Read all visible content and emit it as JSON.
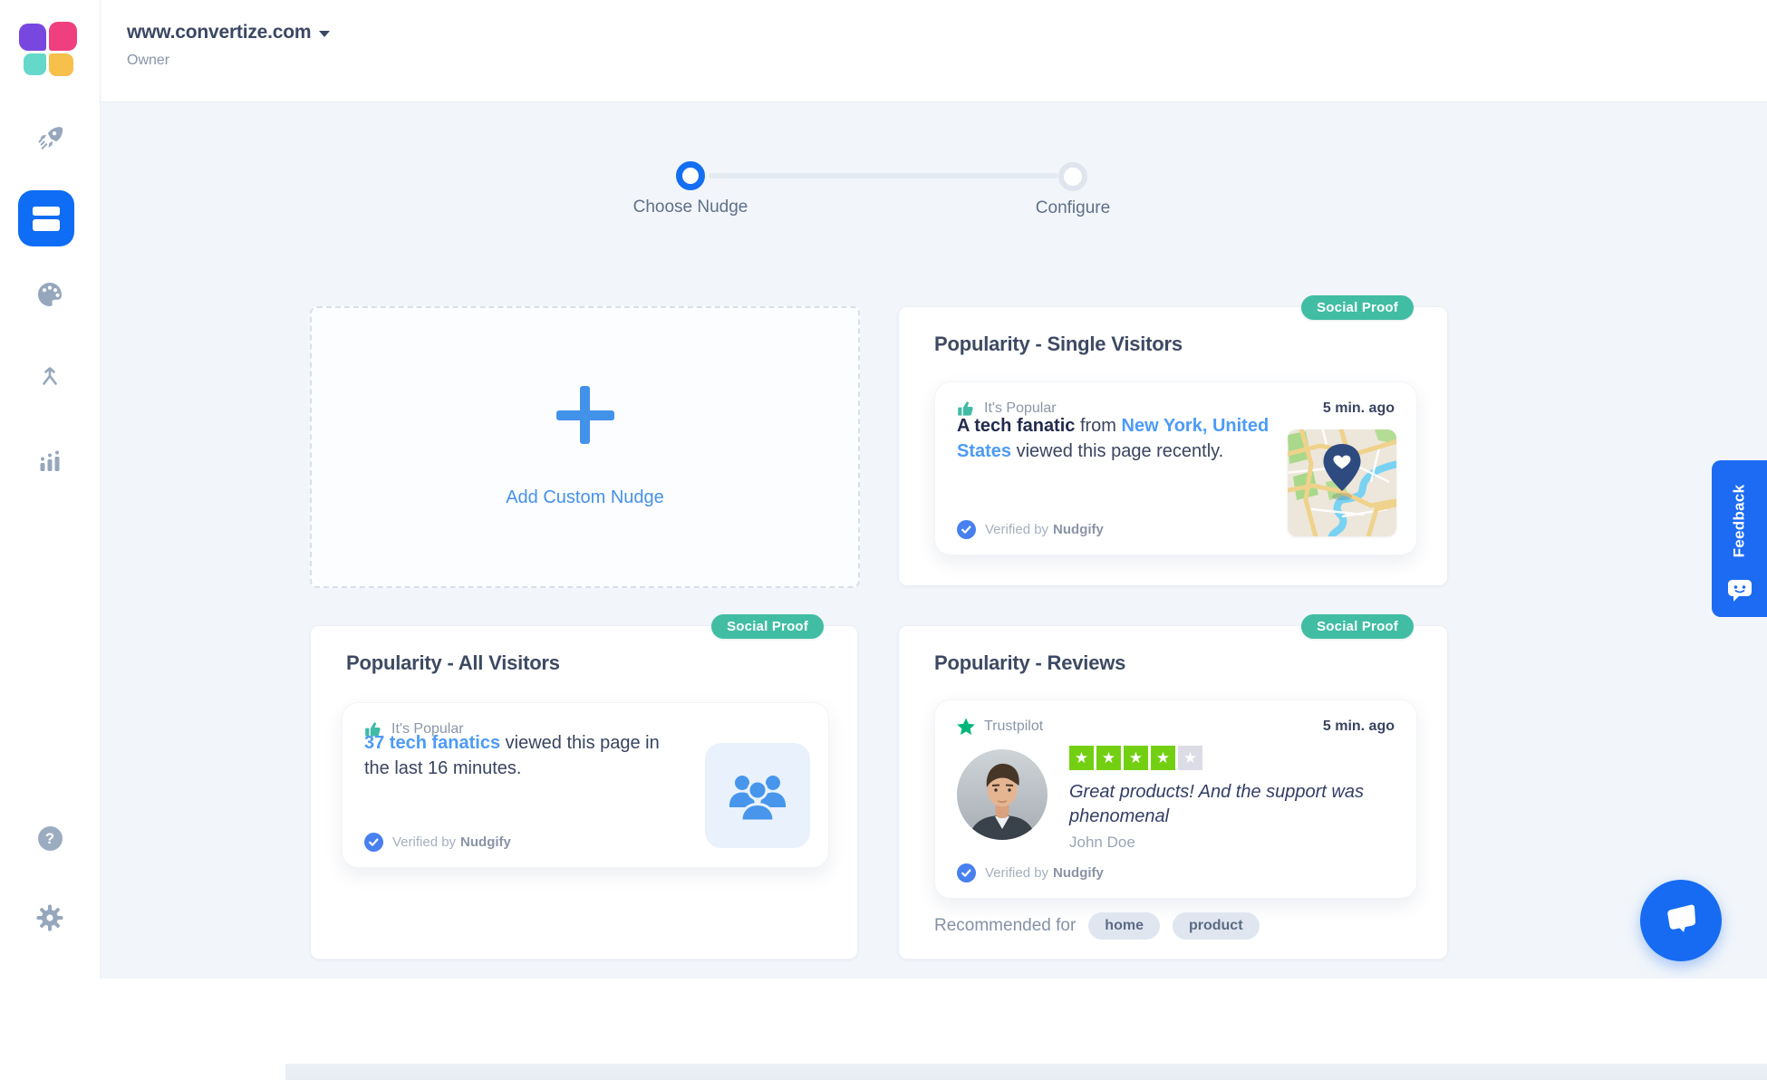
{
  "topbar": {
    "domain": "www.convertize.com",
    "role": "Owner"
  },
  "stepper": {
    "steps": [
      {
        "label": "Choose Nudge",
        "active": true
      },
      {
        "label": "Configure",
        "active": false
      }
    ]
  },
  "add_custom": {
    "label": "Add Custom Nudge"
  },
  "cards": {
    "single_visitors": {
      "badge": "Social Proof",
      "title": "Popularity - Single Visitors",
      "nudge": {
        "tag": "It's Popular",
        "time": "5 min. ago",
        "message_parts": [
          {
            "text": "A tech fanatic",
            "style": "bold"
          },
          {
            "text": " from ",
            "style": "plain"
          },
          {
            "text": "New York, United States",
            "style": "link"
          },
          {
            "text": " viewed this page recently.",
            "style": "plain"
          }
        ],
        "verified_prefix": "Verified by",
        "verified_brand": "Nudgify"
      }
    },
    "all_visitors": {
      "badge": "Social Proof",
      "title": "Popularity - All Visitors",
      "nudge": {
        "tag": "It's Popular",
        "message_parts": [
          {
            "text": "37 tech fanatics",
            "style": "link"
          },
          {
            "text": " viewed this page in the last 16 minutes.",
            "style": "plain"
          }
        ],
        "verified_prefix": "Verified by",
        "verified_brand": "Nudgify"
      }
    },
    "reviews": {
      "badge": "Social Proof",
      "title": "Popularity - Reviews",
      "nudge": {
        "source": "Trustpilot",
        "time": "5 min. ago",
        "rating": 4,
        "rating_max": 5,
        "quote": "Great products! And the support was phenomenal",
        "author": "John Doe",
        "verified_prefix": "Verified by",
        "verified_brand": "Nudgify"
      },
      "recommended_label": "Recommended for",
      "tags": [
        "home",
        "product"
      ]
    }
  },
  "feedback": {
    "label": "Feedback"
  },
  "icons": {
    "sidebar": [
      "rocket-icon",
      "nudges-icon",
      "palette-icon",
      "ab-test-icon",
      "analytics-icon",
      "help-icon",
      "settings-icon"
    ],
    "nudges": [
      "thumbs-up-icon",
      "verified-check-icon",
      "trustpilot-star-icon",
      "visitors-group-icon",
      "map-pin-icon",
      "plus-icon"
    ],
    "misc": [
      "dropdown-caret-icon",
      "feedback-bubble-icon",
      "chat-bubble-icon"
    ]
  },
  "colors": {
    "accent_blue": "#156CF3",
    "link_blue": "#4D9BF5",
    "badge_teal": "#41BDA4",
    "trustpilot_green": "#00B67A",
    "star_green": "#73CF11",
    "star_empty_gray": "#DCDCE6",
    "page_background": "#F2F6FA",
    "logo_purple": "#7847E0",
    "logo_pink": "#F03F7F",
    "logo_teal": "#64D9C9",
    "logo_yellow": "#F6C04B"
  }
}
